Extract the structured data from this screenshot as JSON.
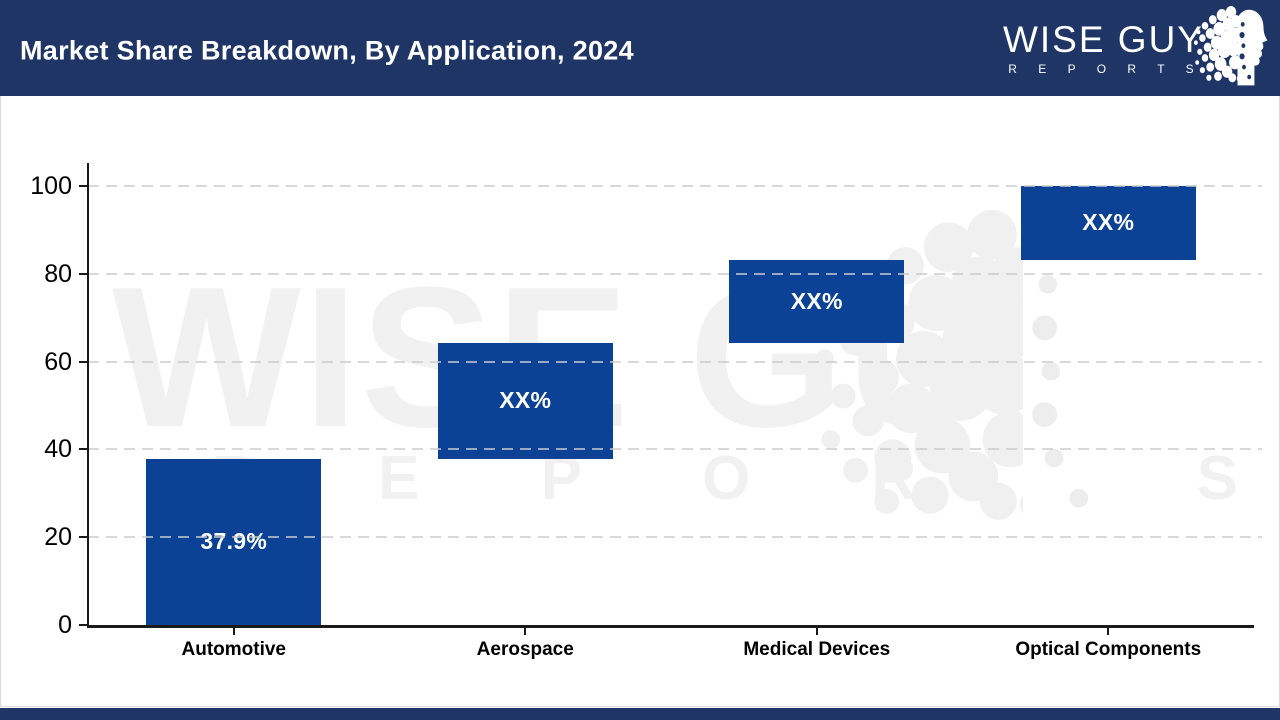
{
  "header": {
    "title": "Market Share Breakdown, By Application, 2024",
    "bg_color": "#1f3566",
    "logo": {
      "word": "WISE GUY",
      "sub": "R E P O R T S"
    }
  },
  "watermark": {
    "word": "WISE GUY",
    "sub": "R E P O R T S",
    "color": "#f1f1f1"
  },
  "chart_data": {
    "type": "bar",
    "subtype": "waterfall",
    "title": "Market Share Breakdown, By Application, 2024",
    "categories": [
      "Automotive",
      "Aerospace",
      "Medical Devices",
      "Optical Components"
    ],
    "segments": [
      {
        "category": "Automotive",
        "start": 0,
        "end": 37.9,
        "label": "37.9%"
      },
      {
        "category": "Aerospace",
        "start": 37.9,
        "end": 64.2,
        "label": "XX%"
      },
      {
        "category": "Medical Devices",
        "start": 64.2,
        "end": 83.2,
        "label": "XX%"
      },
      {
        "category": "Optical Components",
        "start": 83.2,
        "end": 100,
        "label": "XX%"
      }
    ],
    "ylim": [
      0,
      100
    ],
    "yticks": [
      0,
      20,
      40,
      60,
      80,
      100
    ],
    "xlabel": "",
    "ylabel": "",
    "grid": "horizontal-dashed",
    "legend": "none",
    "bar_color": "#0b4295",
    "bar_label_color": "#ffffff",
    "grid_color": "#d8d8d8"
  }
}
